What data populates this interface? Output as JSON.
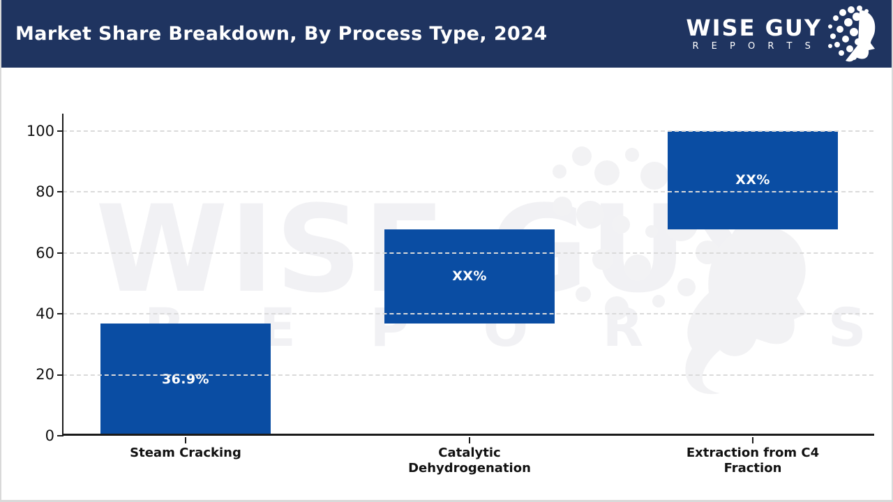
{
  "header": {
    "title": "Market Share Breakdown, By Process Type, 2024",
    "logo": {
      "line1": "WISE GUY",
      "line2": "R E P O R T S"
    }
  },
  "watermark": {
    "line1": "WISE GUY",
    "line2": "R E P O R T S"
  },
  "colors": {
    "header_bg": "#1f3460",
    "bar_fill": "#0a4da3",
    "grid": "#dadada",
    "axis": "#1a1a1a",
    "watermark": "#f1f1f4",
    "value_label": "#ffffff"
  },
  "chart_data": {
    "type": "bar",
    "subtype": "waterfall",
    "title": "Market Share Breakdown, By Process Type, 2024",
    "xlabel": "",
    "ylabel": "",
    "ylim": [
      0,
      105
    ],
    "yticks": [
      0,
      20,
      40,
      60,
      80,
      100
    ],
    "grid": "horizontal dashed",
    "legend": "none",
    "categories": [
      [
        "Steam Cracking"
      ],
      [
        "Catalytic",
        "Dehydrogenation"
      ],
      [
        "Extraction from C4",
        "Fraction"
      ]
    ],
    "bars": [
      {
        "category": "Steam Cracking",
        "label": "36.9%",
        "start": 0,
        "end": 36.9
      },
      {
        "category": "Catalytic Dehydrogenation",
        "label": "XX%",
        "start": 36.9,
        "end": 67.8
      },
      {
        "category": "Extraction from C4 Fraction",
        "label": "XX%",
        "start": 67.8,
        "end": 100
      }
    ],
    "bar_color": "#0a4da3"
  }
}
